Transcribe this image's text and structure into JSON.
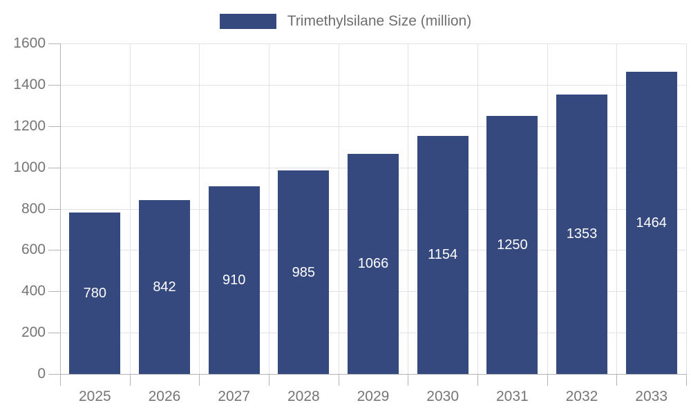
{
  "chart_data": {
    "type": "bar",
    "title": "",
    "categories": [
      "2025",
      "2026",
      "2027",
      "2028",
      "2029",
      "2030",
      "2031",
      "2032",
      "2033"
    ],
    "series": [
      {
        "name": "Trimethylsilane Size (million)",
        "values": [
          780,
          842,
          910,
          985,
          1066,
          1154,
          1250,
          1353,
          1464
        ]
      }
    ],
    "bar_labels_shown": true,
    "xlabel": "",
    "ylabel": "",
    "ylim": [
      0,
      1600
    ],
    "ytick_step": 200,
    "yticks": [
      0,
      200,
      400,
      600,
      800,
      1000,
      1200,
      1400,
      1600
    ],
    "grid": true,
    "legend_position": "top",
    "colors": {
      "bar": "#35497e",
      "bar_value_text": "#ffffff",
      "axis_text": "#757575",
      "legend_text": "#6e6e6e",
      "gridline": "#e2e2e2",
      "axis_line": "#b3b3b3",
      "background": "#ffffff"
    }
  }
}
